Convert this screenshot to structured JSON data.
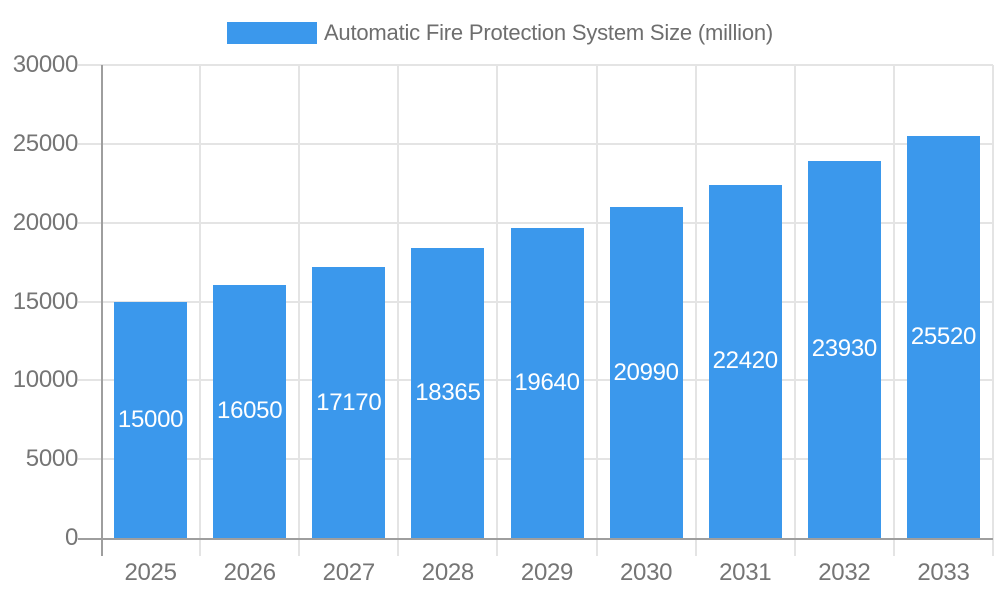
{
  "legend": {
    "swatch_color": "#3B98EC"
  },
  "colors": {
    "bar": "#3B98EC",
    "grid": "#E4E4E4",
    "axis": "#9E9E9E",
    "tick_text": "#757575",
    "legend_text": "#6E6E6E",
    "bar_label": "#FFFFFF",
    "background": "#FFFFFF"
  },
  "chart_data": {
    "type": "bar",
    "title": "",
    "categories": [
      "2025",
      "2026",
      "2027",
      "2028",
      "2029",
      "2030",
      "2031",
      "2032",
      "2033"
    ],
    "series": [
      {
        "name": "Automatic Fire Protection System Size (million)",
        "values": [
          15000,
          16050,
          17170,
          18365,
          19640,
          20990,
          22420,
          23930,
          25520
        ]
      }
    ],
    "xlabel": "",
    "ylabel": "",
    "ylim": [
      0,
      30000
    ],
    "ytick_step": 5000,
    "yticks": [
      0,
      5000,
      10000,
      15000,
      20000,
      25000,
      30000
    ],
    "grid": true,
    "legend_position": "top",
    "bar_value_labels": "inside-middle"
  }
}
